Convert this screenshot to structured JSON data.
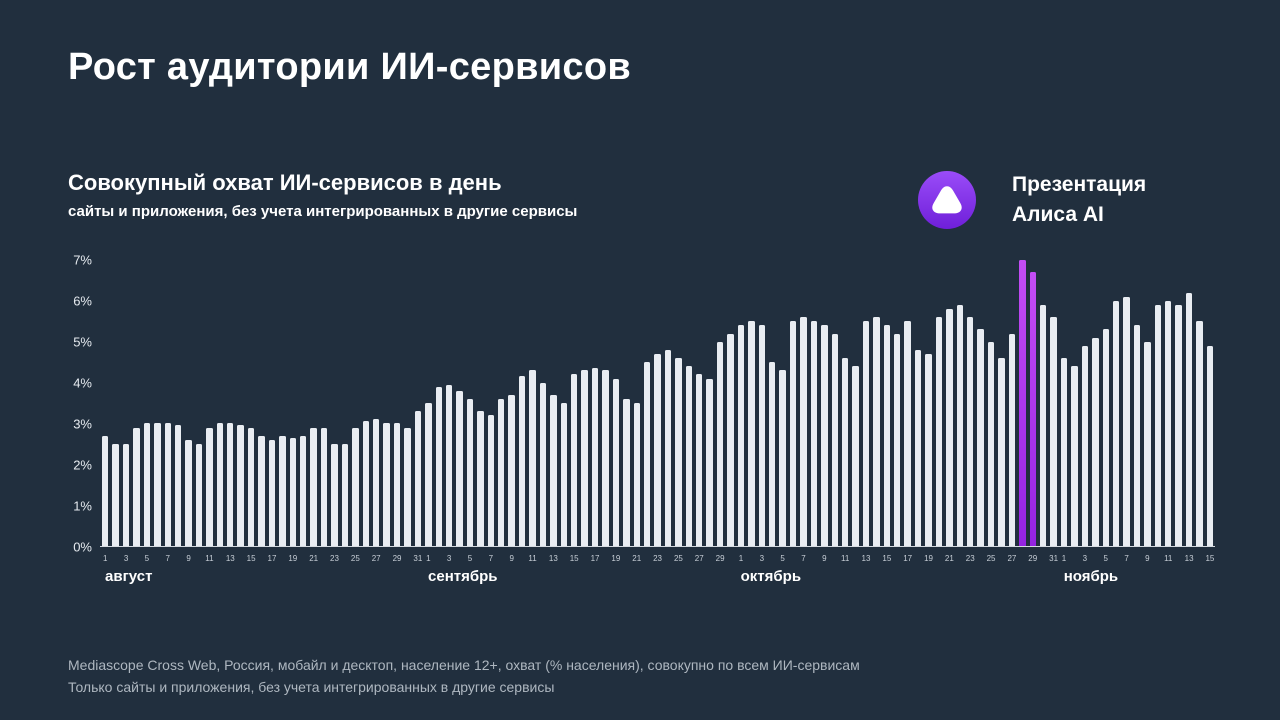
{
  "slide": {
    "title": "Рост аудитории ИИ-сервисов",
    "badge": {
      "icon": "alisa-logo-icon",
      "line1": "Презентация",
      "line2": "Алиса AI"
    },
    "footnotes": {
      "line1": "Mediascope Cross Web, Россия, мобайл и десктоп, население 12+, охват (% населения), совокупно по всем ИИ-сервисам",
      "line2": "Только сайты и приложения, без учета интегрированных в другие сервисы"
    }
  },
  "chart_data": {
    "type": "bar",
    "title": "Совокупный охват ИИ-сервисов в день",
    "subtitle": "сайты и приложения, без учета интегрированных в другие сервисы",
    "xlabel": "",
    "ylabel": "",
    "ylim": [
      0,
      7
    ],
    "yticks": [
      "0%",
      "1%",
      "2%",
      "3%",
      "4%",
      "5%",
      "6%",
      "7%"
    ],
    "grid": false,
    "bar_color": "#e9edf2",
    "highlight_color": "#a62ce8",
    "day_label_step": 2,
    "months": [
      {
        "label": "август",
        "days": 31
      },
      {
        "label": "сентябрь",
        "days": 30
      },
      {
        "label": "октябрь",
        "days": 31
      },
      {
        "label": "ноябрь",
        "days": 15
      }
    ],
    "values": [
      2.7,
      2.5,
      2.5,
      2.9,
      3.0,
      3.0,
      3.0,
      2.95,
      2.6,
      2.5,
      2.9,
      3.0,
      3.0,
      2.95,
      2.9,
      2.7,
      2.6,
      2.7,
      2.65,
      2.7,
      2.9,
      2.9,
      2.5,
      2.5,
      2.9,
      3.05,
      3.1,
      3.0,
      3.0,
      2.9,
      3.3,
      3.5,
      3.9,
      3.95,
      3.8,
      3.6,
      3.3,
      3.2,
      3.6,
      3.7,
      4.15,
      4.3,
      4.0,
      3.7,
      3.5,
      4.2,
      4.3,
      4.35,
      4.3,
      4.1,
      3.6,
      3.5,
      4.5,
      4.7,
      4.8,
      4.6,
      4.4,
      4.2,
      4.1,
      5.0,
      5.2,
      5.4,
      5.5,
      5.4,
      4.5,
      4.3,
      5.5,
      5.6,
      5.5,
      5.4,
      5.2,
      4.6,
      4.4,
      5.5,
      5.6,
      5.4,
      5.2,
      5.5,
      4.8,
      4.7,
      5.6,
      5.8,
      5.9,
      5.6,
      5.3,
      5.0,
      4.6,
      5.2,
      7.0,
      6.7,
      5.9,
      5.6,
      4.6,
      4.4,
      4.9,
      5.1,
      5.3,
      6.0,
      6.1,
      5.4,
      5.0,
      5.9,
      6.0,
      5.9,
      6.2,
      5.5,
      4.9
    ],
    "highlight": {
      "indices": [
        88,
        89
      ],
      "note": "Презентация Алиса AI"
    }
  }
}
